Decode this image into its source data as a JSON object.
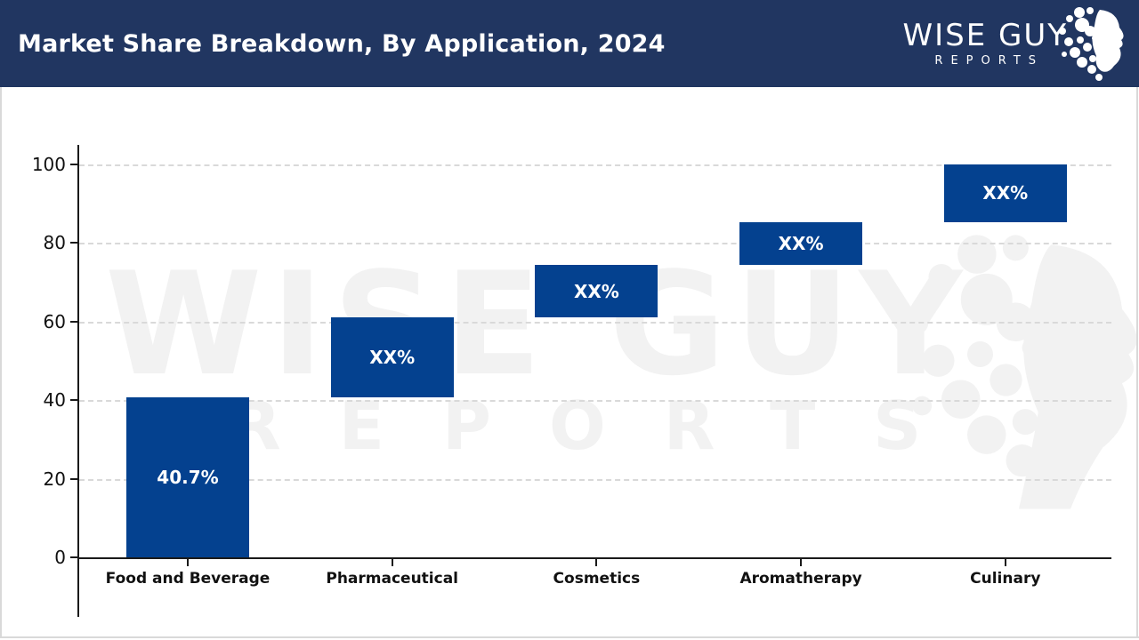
{
  "header": {
    "title": "Market Share Breakdown, By Application, 2024",
    "bg_color": "#213661",
    "logo": {
      "line1": "WISE GUY",
      "line2": "REPORTS"
    }
  },
  "watermark": {
    "line1": "WISE GUY",
    "line2": "REPORTS"
  },
  "chart_data": {
    "type": "bar",
    "subtype": "waterfall",
    "title": "Market Share Breakdown, By Application, 2024",
    "categories": [
      "Food and Beverage",
      "Pharmaceutical",
      "Cosmetics",
      "Aromatherapy",
      "Culinary"
    ],
    "series": [
      {
        "category": "Food and Beverage",
        "start": 0,
        "end": 40.7,
        "label": "40.7%"
      },
      {
        "category": "Pharmaceutical",
        "start": 40.7,
        "end": 61.0,
        "label": "XX%"
      },
      {
        "category": "Cosmetics",
        "start": 61.0,
        "end": 74.5,
        "label": "XX%"
      },
      {
        "category": "Aromatherapy",
        "start": 74.5,
        "end": 85.3,
        "label": "XX%"
      },
      {
        "category": "Culinary",
        "start": 85.3,
        "end": 100,
        "label": "XX%"
      }
    ],
    "xlabel": "",
    "ylabel": "",
    "ylim": [
      0,
      100
    ],
    "yticks": [
      0,
      20,
      40,
      60,
      80,
      100
    ],
    "grid": "horizontal-dashed",
    "legend": "none",
    "bar_color": "#04418f",
    "bar_label_color": "#ffffff",
    "axis_color": "#1a1a1a",
    "grid_color": "#d9d9d9"
  }
}
